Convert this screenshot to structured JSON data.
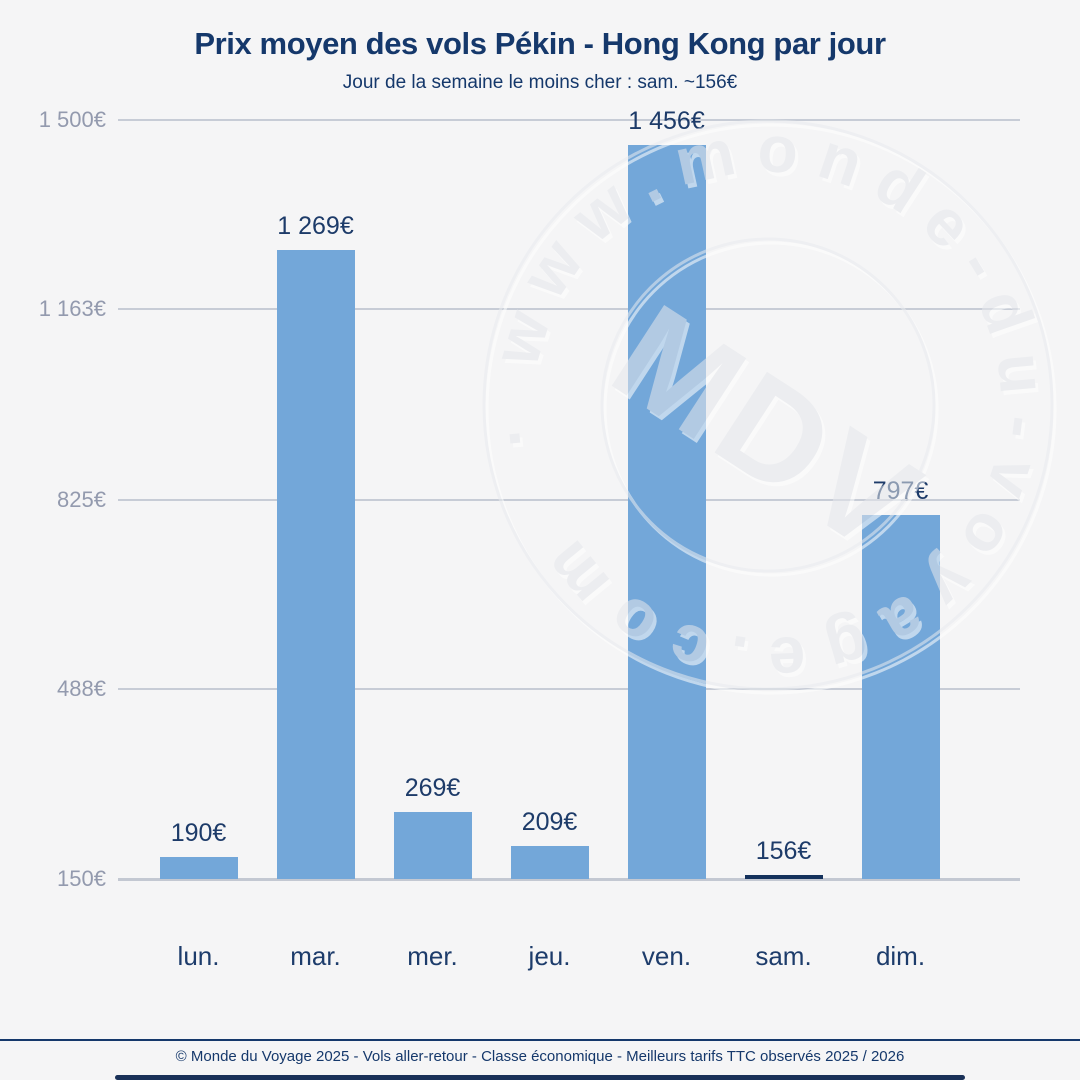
{
  "header": {
    "title": "Prix moyen des vols Pékin - Hong Kong par jour",
    "subtitle": "Jour de la semaine le moins cher : sam. ~156€"
  },
  "chart_data": {
    "type": "bar",
    "title": "Prix moyen des vols Pékin - Hong Kong par jour",
    "subtitle": "Jour de la semaine le moins cher : sam. ~156€",
    "categories": [
      "lun.",
      "mar.",
      "mer.",
      "jeu.",
      "ven.",
      "sam.",
      "dim."
    ],
    "values": [
      190,
      1269,
      269,
      209,
      1456,
      156,
      797
    ],
    "value_labels": [
      "190€",
      "1 269€",
      "269€",
      "209€",
      "1 456€",
      "156€",
      "797€"
    ],
    "xlabel": "",
    "ylabel": "",
    "ylim": [
      150,
      1500
    ],
    "ytick_values": [
      1500,
      1163,
      825,
      488,
      150
    ],
    "ytick_labels": [
      "1 500€",
      "1 163€",
      "825€",
      "488€",
      "150€"
    ],
    "grid": true,
    "legend": false,
    "cheapest_index": 5,
    "bar_color": "#73a7d9",
    "highlight_color": "#14315c",
    "grid_color": "#c7ccd6",
    "tick_color": "#939aae",
    "label_color": "#1d3b69"
  },
  "watermark": {
    "ring_text": "· www.monde-du-voyage.com",
    "center_text": "MDV"
  },
  "footer": {
    "text": "© Monde du Voyage 2025 - Vols aller-retour - Classe économique - Meilleurs tarifs TTC observés 2025 / 2026"
  }
}
